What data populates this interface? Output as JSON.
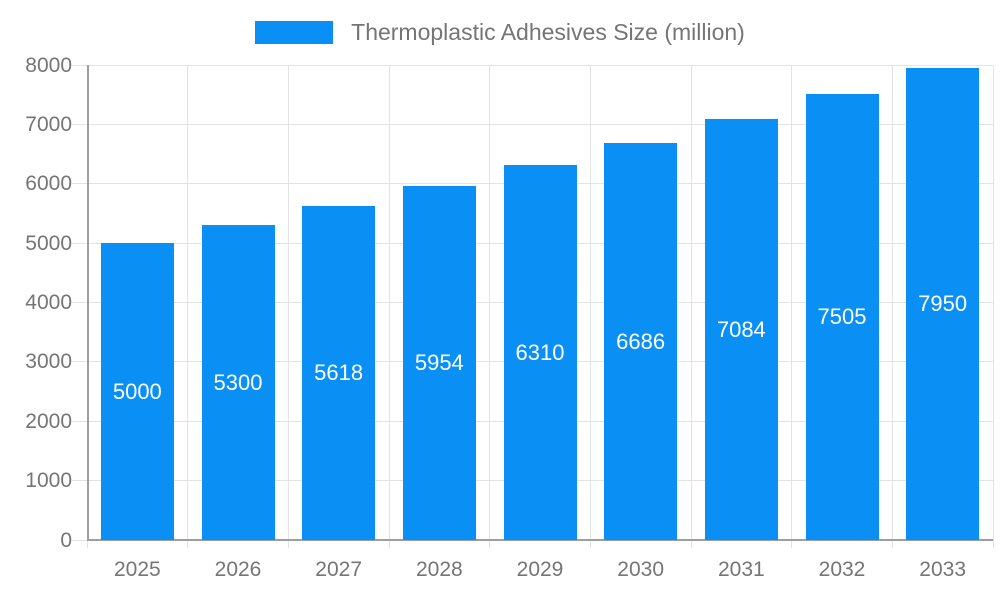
{
  "legend": {
    "label": "Thermoplastic Adhesives Size (million)"
  },
  "chart_data": {
    "type": "bar",
    "title": "Thermoplastic Adhesives Size (million)",
    "categories": [
      "2025",
      "2026",
      "2027",
      "2028",
      "2029",
      "2030",
      "2031",
      "2032",
      "2033"
    ],
    "values": [
      5000,
      5300,
      5618,
      5954,
      6310,
      6686,
      7084,
      7505,
      7950
    ],
    "value_labels": [
      "5000",
      "5300",
      "5618",
      "5954",
      "6310",
      "6686",
      "7084",
      "7505",
      "7950"
    ],
    "xlabel": "",
    "ylabel": "",
    "ylim": [
      0,
      8000
    ],
    "yticks": [
      0,
      1000,
      2000,
      3000,
      4000,
      5000,
      6000,
      7000,
      8000
    ],
    "grid": true,
    "legend_position": "top-center",
    "bar_labels_inside": "centered",
    "colors": {
      "bar": "#0a90f5",
      "grid": "#e3e3e3",
      "axis": "#9e9e9e",
      "tick_text": "#757575",
      "legend_text": "#757575",
      "value_label": "#ffffff",
      "background": "#ffffff"
    }
  }
}
